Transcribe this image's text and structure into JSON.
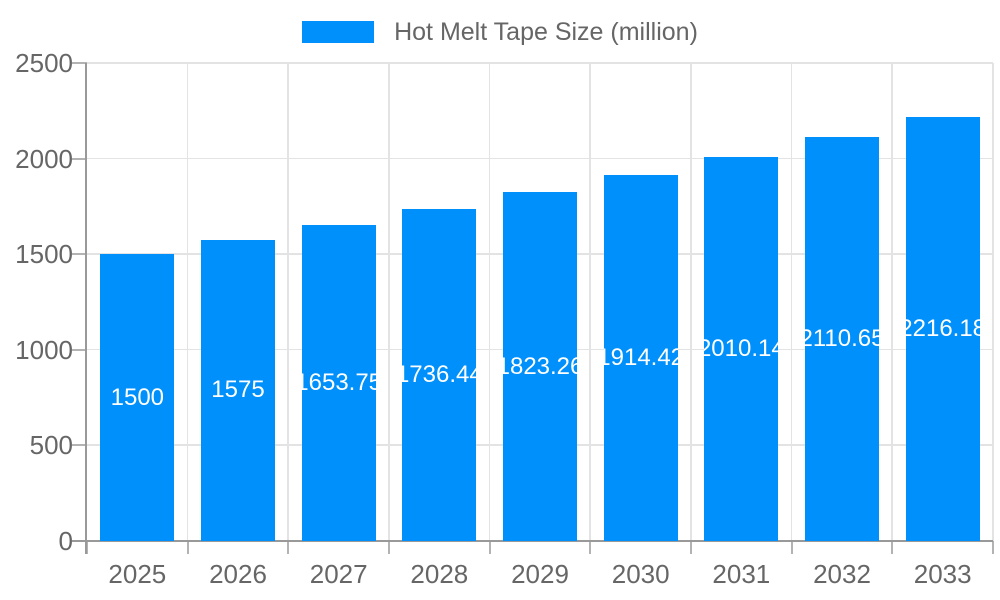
{
  "chart_data": {
    "type": "bar",
    "title": "Hot Melt Tape Size (million)",
    "legend": {
      "label": "Hot Melt Tape Size (million)",
      "position": "top"
    },
    "categories": [
      "2025",
      "2026",
      "2027",
      "2028",
      "2029",
      "2030",
      "2031",
      "2032",
      "2033"
    ],
    "values": [
      1500,
      1575,
      1653.75,
      1736.44,
      1823.26,
      1914.42,
      2010.14,
      2110.65,
      2216.18
    ],
    "value_labels": [
      "1500",
      "1575",
      "1653.75",
      "1736.44",
      "1823.26",
      "1914.42",
      "2010.14",
      "2110.65",
      "2216.18"
    ],
    "xlabel": "",
    "ylabel": "",
    "ylim": [
      0,
      2500
    ],
    "y_ticks": [
      0,
      500,
      1000,
      1500,
      2000,
      2500
    ],
    "grid": true,
    "colors": {
      "bar": "#0090FB",
      "grid": "#e3e3e3",
      "axis": "#999999",
      "tick": "#b3b3b3",
      "axis_text": "#666666",
      "value_text": "#ffffff"
    }
  }
}
